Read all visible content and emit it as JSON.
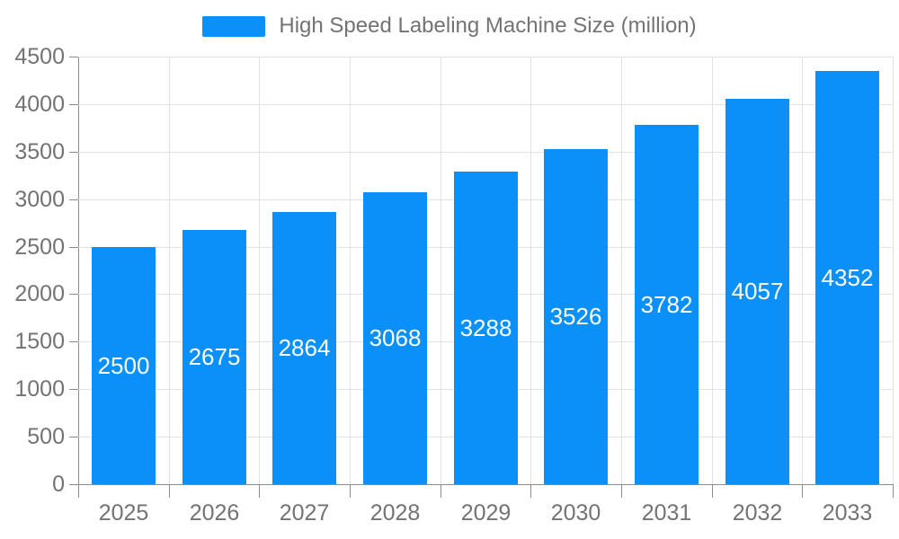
{
  "legend": {
    "label": "High Speed Labeling Machine Size (million)"
  },
  "colors": {
    "bar": "#0a90f8",
    "grid_line": "#e2e2e2",
    "axis_line": "#8c8c8c",
    "axis_text": "#737373",
    "bar_label": "#ffffff",
    "background": "#ffffff"
  },
  "chart_data": {
    "type": "bar",
    "title": "High Speed Labeling Machine Size (million)",
    "categories": [
      "2025",
      "2026",
      "2027",
      "2028",
      "2029",
      "2030",
      "2031",
      "2032",
      "2033"
    ],
    "values": [
      2500,
      2675,
      2864,
      3068,
      3288,
      3526,
      3782,
      4057,
      4352
    ],
    "xlabel": "",
    "ylabel": "",
    "ylim": [
      0,
      4500
    ],
    "ytick_interval": 500,
    "yticks": [
      0,
      500,
      1000,
      1500,
      2000,
      2500,
      3000,
      3500,
      4000,
      4500
    ],
    "grid": true,
    "legend_position": "top",
    "bar_label_position": "inside-center"
  }
}
